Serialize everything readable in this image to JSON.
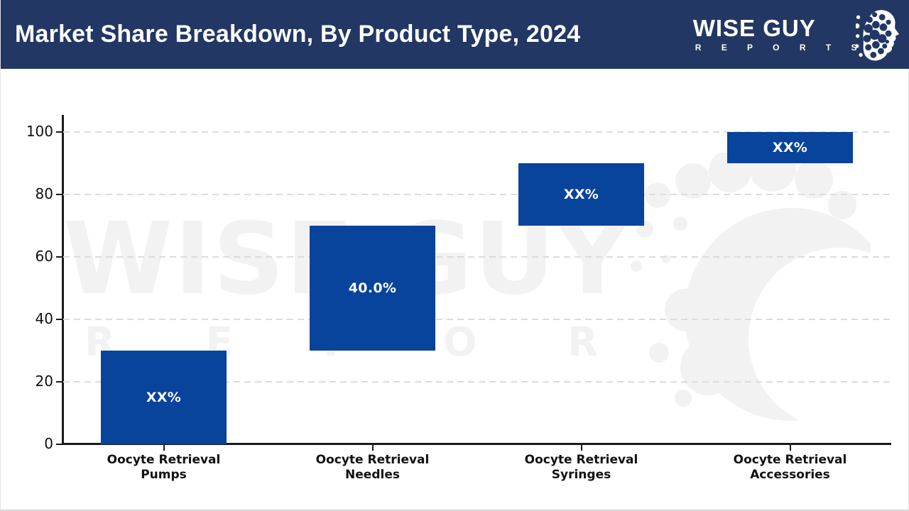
{
  "header": {
    "title": "Market Share Breakdown, By Product Type, 2024",
    "logo": {
      "name": "WISE GUY",
      "subtitle": "R E P O R T S"
    }
  },
  "watermark": {
    "line1": "WISE GUY",
    "line2": "R E P O R T S"
  },
  "chart_data": {
    "type": "bar",
    "subtype": "waterfall",
    "title": "Market Share Breakdown, By Product Type, 2024",
    "categories": [
      "Oocyte Retrieval Pumps",
      "Oocyte Retrieval Needles",
      "Oocyte Retrieval Syringes",
      "Oocyte Retrieval Accessories"
    ],
    "bars": [
      {
        "category": "Oocyte Retrieval Pumps",
        "label": "XX%",
        "start": 0,
        "end": 30
      },
      {
        "category": "Oocyte Retrieval Needles",
        "label": "40.0%",
        "start": 30,
        "end": 70,
        "value": 40.0
      },
      {
        "category": "Oocyte Retrieval Syringes",
        "label": "XX%",
        "start": 70,
        "end": 90
      },
      {
        "category": "Oocyte Retrieval Accessories",
        "label": "XX%",
        "start": 90,
        "end": 100
      }
    ],
    "ylim": [
      0,
      100
    ],
    "yticks": [
      0,
      20,
      40,
      60,
      80,
      100
    ],
    "xlabel": "",
    "ylabel": "",
    "grid": "horizontal-dashed",
    "legend": "none",
    "bar_color": "#08439c",
    "bar_label_color": "#ffffff"
  },
  "colors": {
    "header_bg": "#223763",
    "bar": "#08439c",
    "axis": "#1a1a1a",
    "gridline": "#dcdcdc",
    "watermark": "#f2f2f2",
    "page_bg": "#ffffff"
  }
}
